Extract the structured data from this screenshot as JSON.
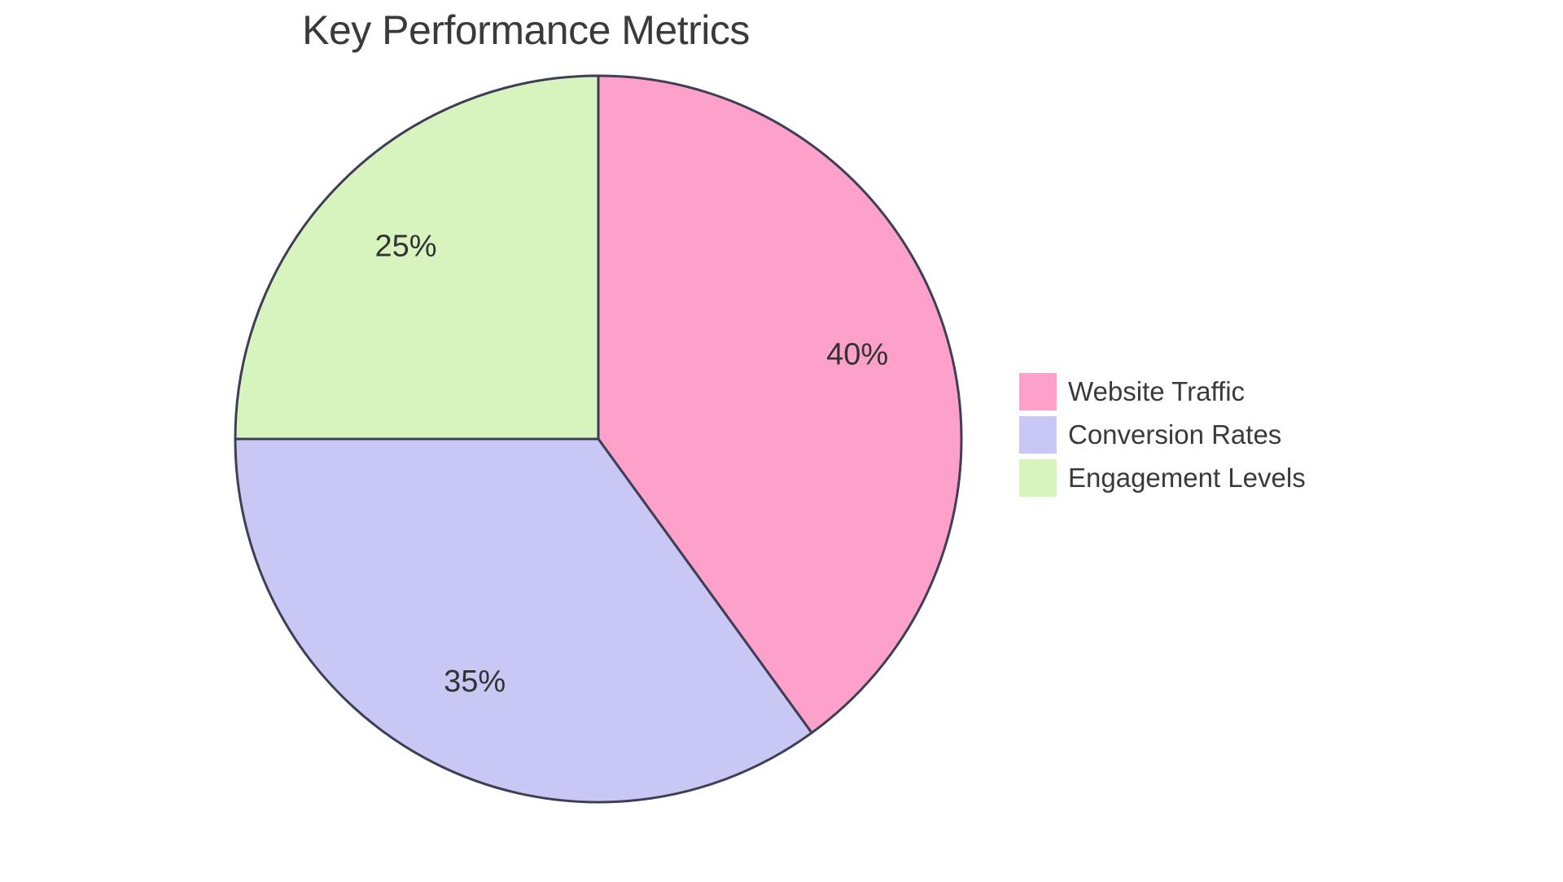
{
  "page": {
    "background_color": "#ffffff"
  },
  "chart_data": {
    "type": "pie",
    "title": "Key Performance Metrics",
    "categories": [
      "Website Traffic",
      "Conversion Rates",
      "Engagement Levels"
    ],
    "values": [
      40,
      35,
      25
    ],
    "slices": [
      {
        "label": "Website Traffic",
        "value": 40,
        "percent_label": "40%",
        "color": "#FDA1CB"
      },
      {
        "label": "Conversion Rates",
        "value": 35,
        "percent_label": "35%",
        "color": "#C9C8F5"
      },
      {
        "label": "Engagement Levels",
        "value": 25,
        "percent_label": "25%",
        "color": "#D7F4BE"
      }
    ],
    "start_angle_deg": 0,
    "direction": "clockwise",
    "stroke_color": "#3E3E56",
    "stroke_width": 3,
    "label_color": "#333333",
    "label_distance_ratio": 0.75,
    "legend_position": "right",
    "title_color": "#3A3A3A",
    "legend_text_color": "#3A3A3A"
  }
}
